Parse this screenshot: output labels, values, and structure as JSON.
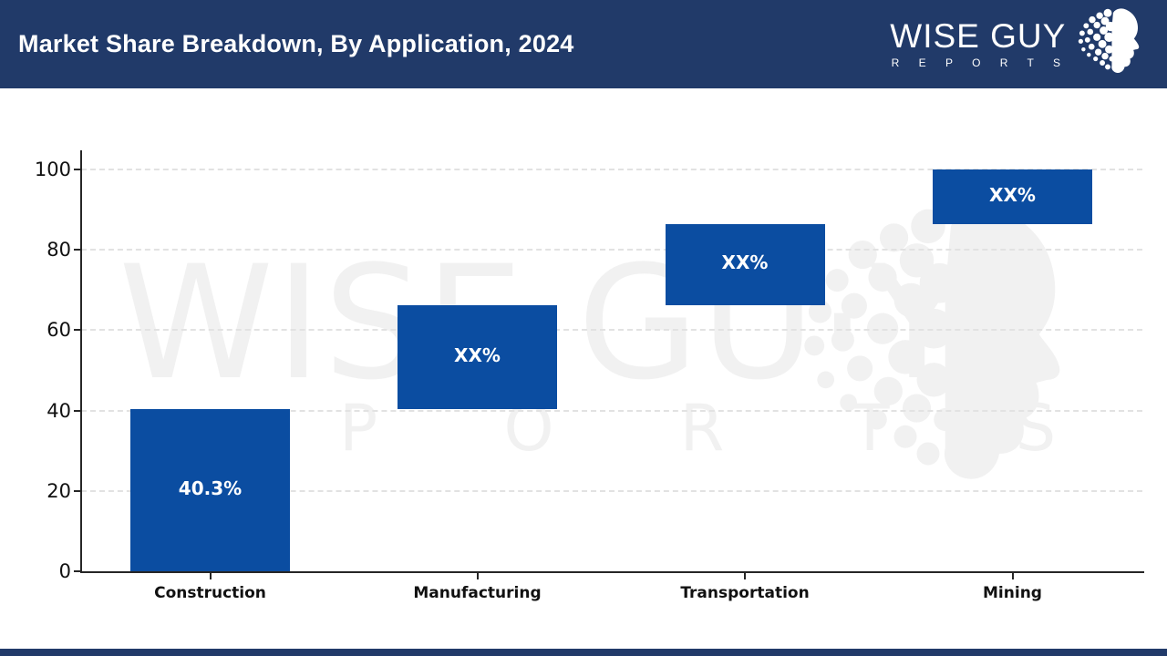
{
  "header": {
    "title": "Market Share Breakdown, By Application, 2024",
    "logo": {
      "name": "WISE GUY",
      "sub": "R E P O R T S"
    }
  },
  "watermark": {
    "big": "WISE GU·Y",
    "small": "P O R T S"
  },
  "colors": {
    "header_bg": "#213a69",
    "footer_bg": "#213a69",
    "bar": "#0b4da1",
    "grid": "#e2e2e2",
    "axis": "#262626",
    "watermark": "#f1f1f1"
  },
  "chart_data": {
    "type": "bar",
    "variant": "waterfall",
    "title": "Market Share Breakdown, By Application, 2024",
    "categories": [
      "Construction",
      "Manufacturing",
      "Transportation",
      "Mining"
    ],
    "segments": [
      {
        "category": "Construction",
        "start": 0,
        "end": 40.3,
        "value": 40.3,
        "label": "40.3%"
      },
      {
        "category": "Manufacturing",
        "start": 40.3,
        "end": 66.3,
        "value": 26.0,
        "label": "XX%"
      },
      {
        "category": "Transportation",
        "start": 66.3,
        "end": 86.5,
        "value": 20.2,
        "label": "XX%"
      },
      {
        "category": "Mining",
        "start": 86.5,
        "end": 100,
        "value": 13.5,
        "label": "XX%"
      }
    ],
    "ylim": [
      0,
      100
    ],
    "yticks": [
      0,
      20,
      40,
      60,
      80,
      100
    ],
    "grid": "horizontal-dashed",
    "legend": "none",
    "bar_color": "#0b4da1"
  }
}
